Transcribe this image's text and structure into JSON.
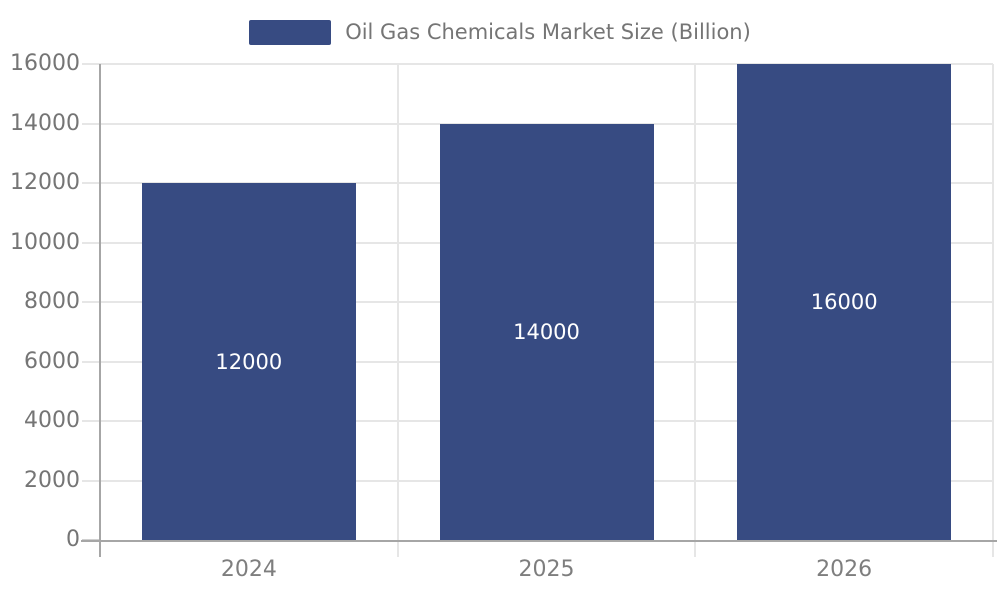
{
  "chart_data": {
    "type": "bar",
    "title": "Oil Gas Chemicals Market Size (Billion)",
    "series_name": "Oil Gas Chemicals Market Size (Billion)",
    "categories": [
      "2024",
      "2025",
      "2026"
    ],
    "values": [
      12000,
      14000,
      16000
    ],
    "bar_labels": [
      "12000",
      "14000",
      "16000"
    ],
    "y_ticks": [
      0,
      2000,
      4000,
      6000,
      8000,
      10000,
      12000,
      14000,
      16000
    ],
    "y_tick_labels": [
      "0",
      "2000",
      "4000",
      "6000",
      "8000",
      "10000",
      "12000",
      "14000",
      "16000"
    ],
    "ylim": [
      0,
      16000
    ],
    "xlabel": "",
    "ylabel": "",
    "grid": true,
    "legend_position": "top-center",
    "colors": {
      "bar": "#374B82",
      "bar_label": "#FFFFFF",
      "axis_line": "#A6A6A6",
      "gridline": "#E6E6E6",
      "boundary_tick": "#D0D0D0",
      "text": "#757575"
    }
  },
  "legend": {
    "label": "Oil Gas Chemicals Market Size (Billion)"
  }
}
